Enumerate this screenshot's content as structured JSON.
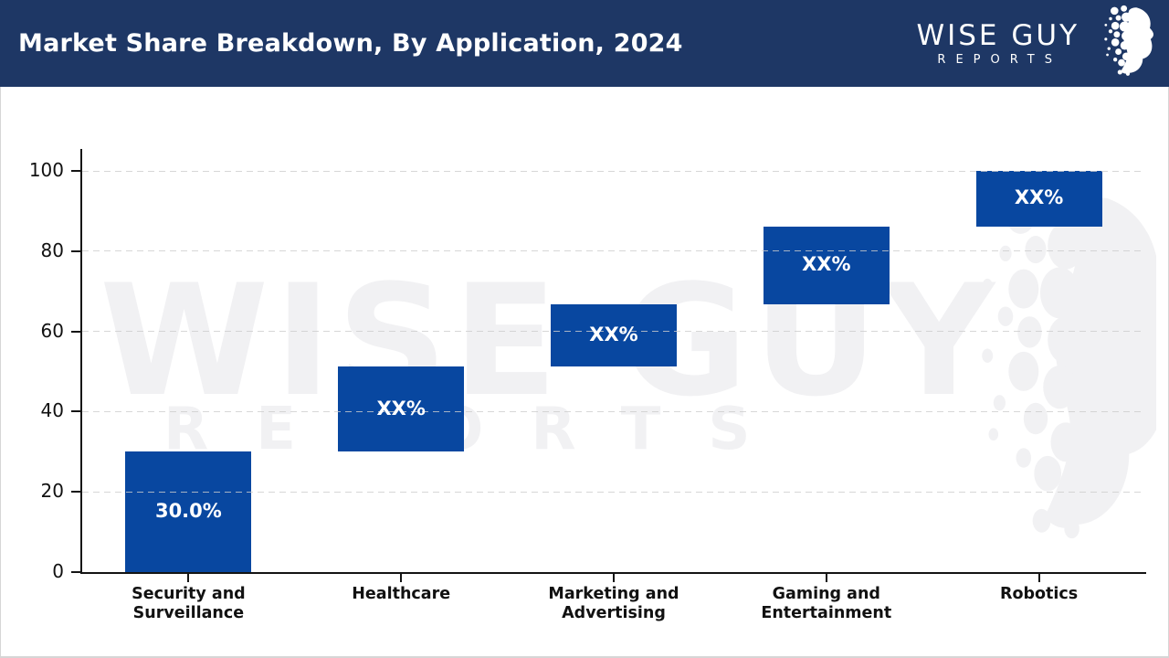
{
  "header": {
    "title": "Market Share Breakdown, By Application, 2024",
    "bg_color": "#1e3765",
    "logo": {
      "line1": "WISE GUY",
      "line2": "REPORTS"
    }
  },
  "watermark": {
    "line1": "WISE GUY",
    "line2": "REPORTS"
  },
  "chart_data": {
    "type": "bar",
    "subtype": "waterfall",
    "title": "Market Share Breakdown, By Application, 2024",
    "categories": [
      "Security and Surveillance",
      "Healthcare",
      "Marketing and Advertising",
      "Gaming and Entertainment",
      "Robotics"
    ],
    "segments": [
      {
        "category": "Security and Surveillance",
        "category_lines": [
          "Security and",
          "Surveillance"
        ],
        "start": 0,
        "end": 30.0,
        "value_label": "30.0%"
      },
      {
        "category": "Healthcare",
        "category_lines": [
          "Healthcare"
        ],
        "start": 30.0,
        "end": 51.2,
        "value_label": "XX%"
      },
      {
        "category": "Marketing and Advertising",
        "category_lines": [
          "Marketing and",
          "Advertising"
        ],
        "start": 51.2,
        "end": 66.8,
        "value_label": "XX%"
      },
      {
        "category": "Gaming and Entertainment",
        "category_lines": [
          "Gaming and",
          "Entertainment"
        ],
        "start": 66.8,
        "end": 86.2,
        "value_label": "XX%"
      },
      {
        "category": "Robotics",
        "category_lines": [
          "Robotics"
        ],
        "start": 86.2,
        "end": 100.0,
        "value_label": "XX%"
      }
    ],
    "yticks": [
      0,
      20,
      40,
      60,
      80,
      100
    ],
    "ylim": [
      0,
      105.5
    ],
    "grid": true,
    "legend_position": "none",
    "bar_color": "#0847a0",
    "grid_color": "#dcdcdc",
    "axis_color": "#141414",
    "value_label_color": "#ffffff"
  }
}
